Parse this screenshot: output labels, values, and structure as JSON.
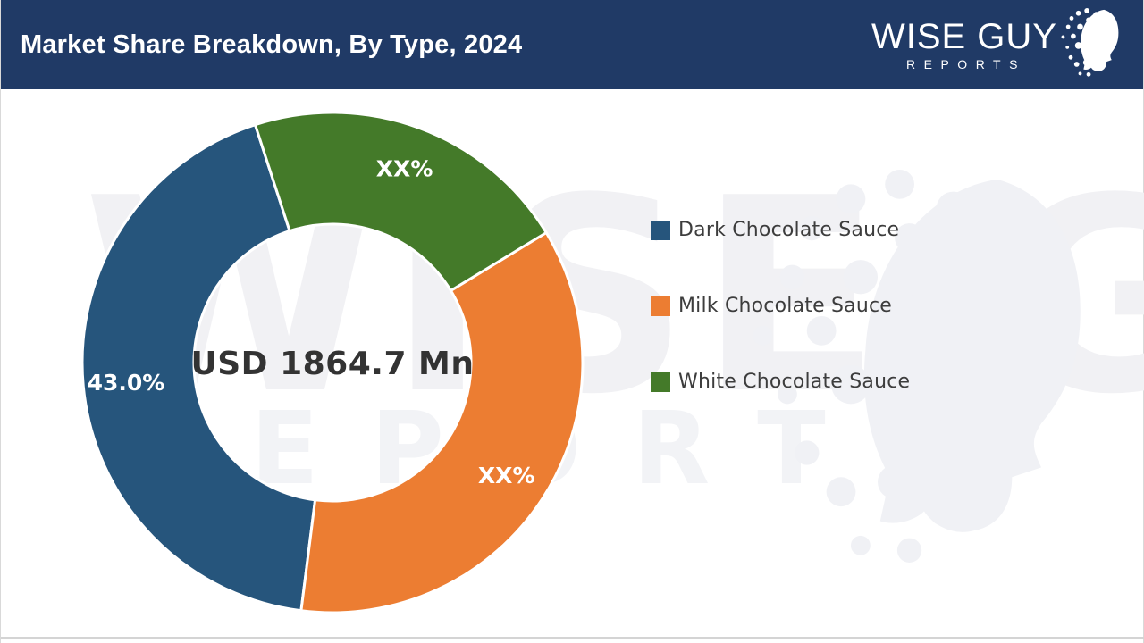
{
  "header": {
    "title": "Market Share Breakdown, By Type, 2024",
    "logo": {
      "line1": "WISE GUY",
      "line2": "REPORTS"
    }
  },
  "watermark": {
    "line1": "WISE GUY",
    "line2": "REPORTS"
  },
  "chart_data": {
    "type": "pie",
    "subtype": "donut",
    "title": "Market Share Breakdown, By Type, 2024",
    "center_label": "USD 1864.7 Mn",
    "legend_position": "right",
    "start_angle_deg": 108,
    "direction": "counterclockwise",
    "slices": [
      {
        "name": "Dark Chocolate Sauce",
        "label": "43.0%",
        "value_pct": 43.0,
        "color": "#26557c"
      },
      {
        "name": "Milk Chocolate Sauce",
        "label": "XX%",
        "value_pct": 35.7,
        "color": "#ec7d32"
      },
      {
        "name": "White Chocolate Sauce",
        "label": "XX%",
        "value_pct": 21.3,
        "color": "#447a29"
      }
    ]
  }
}
